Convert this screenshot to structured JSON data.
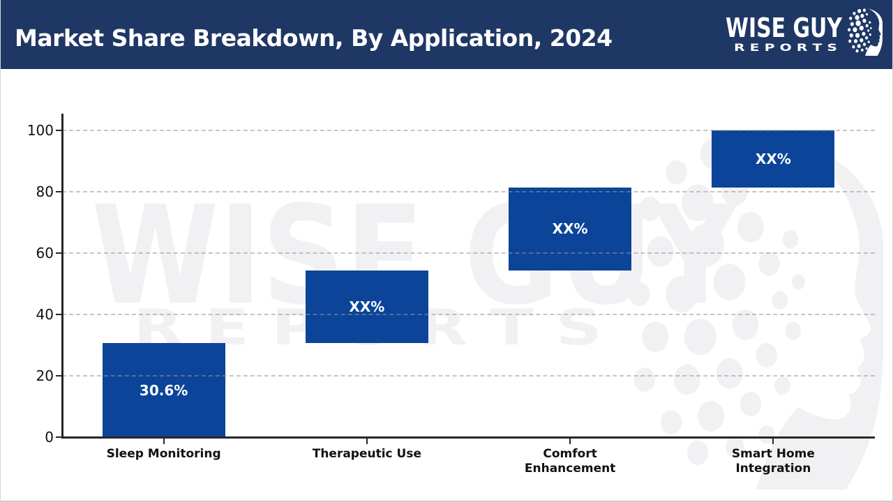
{
  "header": {
    "title": "Market Share Breakdown, By Application, 2024",
    "logo": {
      "line1": "WISE GUY",
      "line2": "R E P O R T S"
    }
  },
  "watermark": {
    "line1": "WISE GUY",
    "line2": "R E P O R T S"
  },
  "colors": {
    "header_bg": "#1f3765",
    "bar": "#0b4499",
    "axis": "#262626",
    "grid": "#bfbfbf",
    "value_label": "#ffffff",
    "watermark": "#f1f1f4",
    "title_text": "#ffffff",
    "tick_text": "#111111"
  },
  "chart_data": {
    "type": "bar",
    "subtype": "waterfall",
    "title": "Market Share Breakdown, By Application, 2024",
    "xlabel": "",
    "ylabel": "",
    "categories": [
      "Sleep Monitoring",
      "Therapeutic Use",
      "Comfort Enhancement",
      "Smart Home Integration"
    ],
    "category_lines": [
      [
        "Sleep Monitoring"
      ],
      [
        "Therapeutic Use"
      ],
      [
        "Comfort",
        "Enhancement"
      ],
      [
        "Smart Home",
        "Integration"
      ]
    ],
    "segments": [
      {
        "start": 0,
        "end": 30.6,
        "value": 30.6,
        "label": "30.6%"
      },
      {
        "start": 30.6,
        "end": 54.3,
        "value": 23.7,
        "label": "XX%"
      },
      {
        "start": 54.3,
        "end": 81.4,
        "value": 27.1,
        "label": "XX%"
      },
      {
        "start": 81.4,
        "end": 100,
        "value": 18.6,
        "label": "XX%"
      }
    ],
    "yticks": [
      0,
      20,
      40,
      60,
      80,
      100
    ],
    "ylim": [
      0,
      105
    ],
    "grid": "dashed-horizontal",
    "legend": "none"
  }
}
